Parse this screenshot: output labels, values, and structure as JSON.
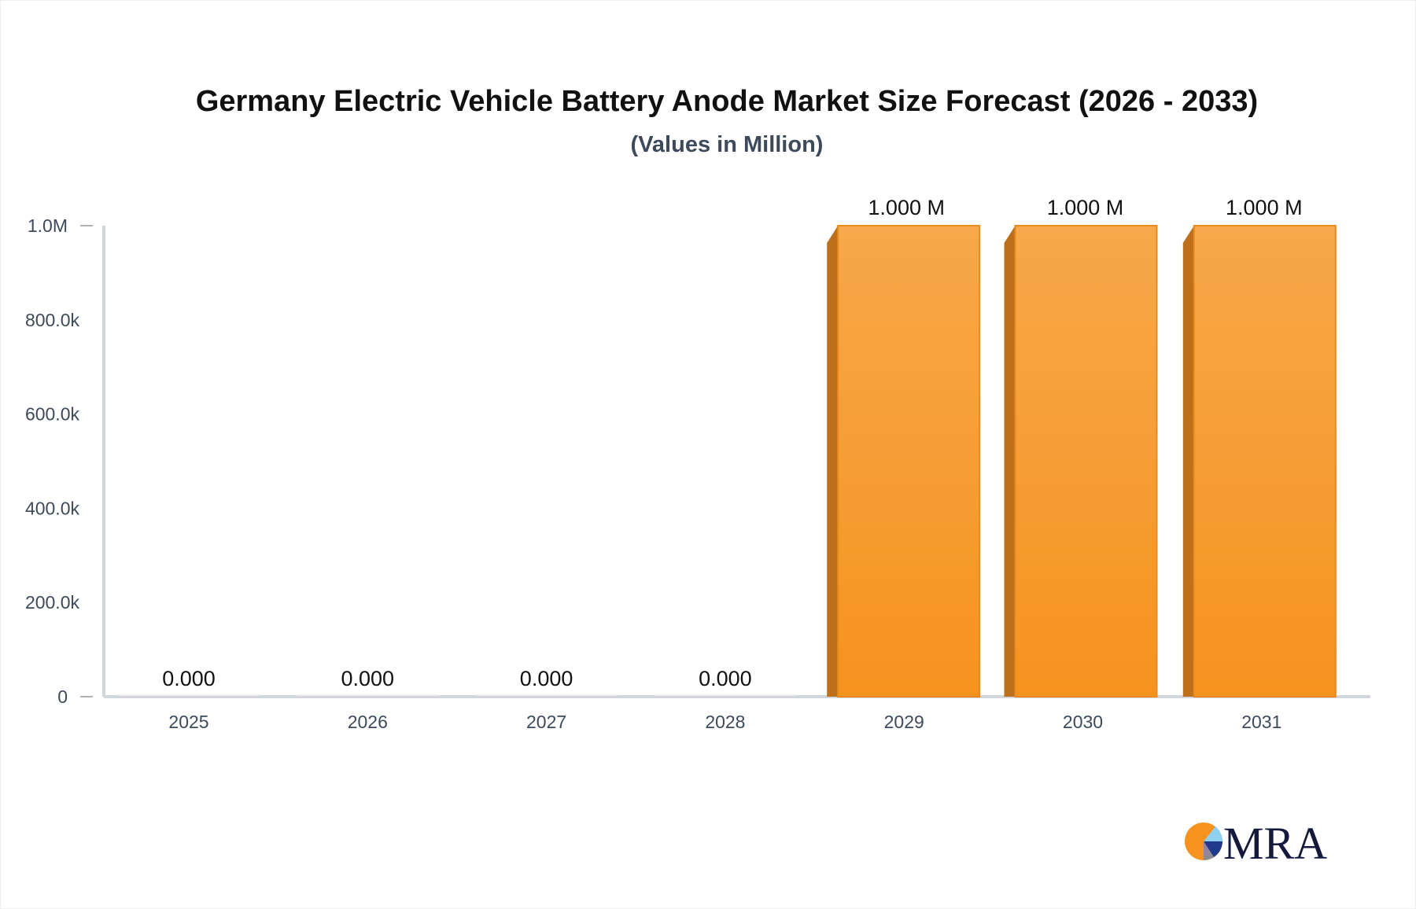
{
  "chart_data": {
    "type": "bar",
    "title": "Germany Electric Vehicle Battery Anode Market Size Forecast (2026 - 2033)",
    "subtitle": "(Values in Million)",
    "categories": [
      "2025",
      "2026",
      "2027",
      "2028",
      "2029",
      "2030",
      "2031"
    ],
    "values": [
      0,
      0,
      0,
      0,
      1000000,
      1000000,
      1000000
    ],
    "data_labels": [
      "0.000",
      "0.000",
      "0.000",
      "0.000",
      "1.000 M",
      "1.000 M",
      "1.000 M"
    ],
    "yticks": [
      0,
      200000,
      400000,
      600000,
      800000,
      1000000
    ],
    "ytick_labels": [
      "0",
      "200.0k",
      "400.0k",
      "600.0k",
      "800.0k",
      "1.0M"
    ],
    "ylim": [
      0,
      1000000
    ],
    "grid": false,
    "bar_color": "#f7a03c",
    "bar_side_color": "#bd6f19",
    "xlabel": "",
    "ylabel": ""
  },
  "logo": {
    "text": "MRA"
  }
}
